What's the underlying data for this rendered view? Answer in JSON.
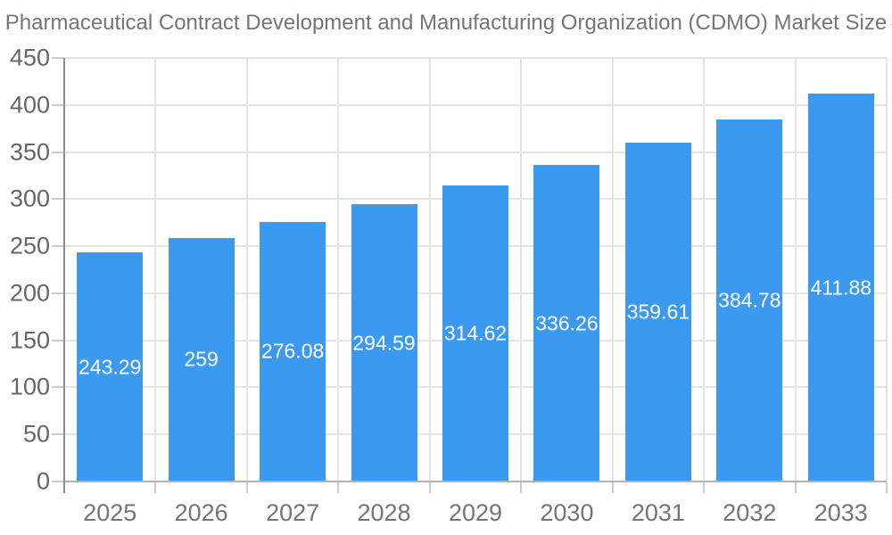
{
  "title": "Pharmaceutical Contract Development and Manufacturing Organization (CDMO) Market Size",
  "colors": {
    "background": "#ffffff",
    "bar": "#3b99f0",
    "bar_label": "#ffffff",
    "title_text": "#757575",
    "y_axis_label": "#666666",
    "x_axis_label": "#757575",
    "gridline": "#e5e5e5",
    "y_axis_line": "#8c8c8c",
    "x_baseline": "#b3b3b3",
    "tick": "#cccccc"
  },
  "chart_data": {
    "type": "bar",
    "title": "Pharmaceutical Contract Development and Manufacturing Organization (CDMO) Market Size",
    "categories": [
      "2025",
      "2026",
      "2027",
      "2028",
      "2029",
      "2030",
      "2031",
      "2032",
      "2033"
    ],
    "values": [
      243.29,
      259,
      276.08,
      294.59,
      314.62,
      336.26,
      359.61,
      384.78,
      411.88
    ],
    "bar_labels": [
      "243.29",
      "259",
      "276.08",
      "294.59",
      "314.62",
      "336.26",
      "359.61",
      "384.78",
      "411.88"
    ],
    "xlabel": "",
    "ylabel": "",
    "ylim": [
      0,
      450
    ],
    "yticks": [
      0,
      50,
      100,
      150,
      200,
      250,
      300,
      350,
      400,
      450
    ],
    "grid": true,
    "legend": false,
    "bar_label_position": "inside-center"
  }
}
